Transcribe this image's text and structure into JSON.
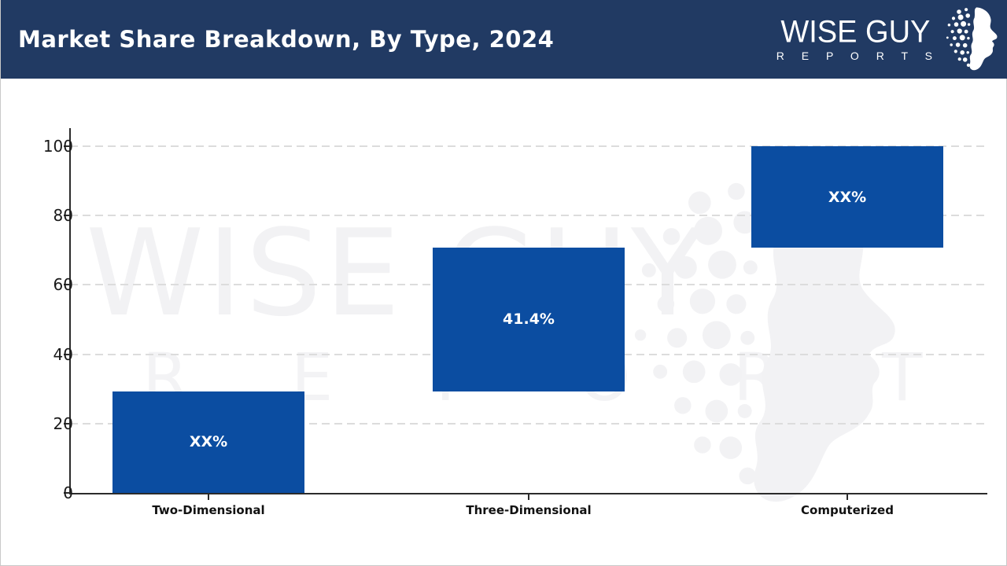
{
  "header": {
    "title": "Market Share Breakdown, By Type, 2024",
    "bg_color": "#213a63",
    "logo": {
      "line1": "WISE GUY",
      "line2": "R E P O R T S"
    }
  },
  "watermark": {
    "line1": "WISE GUY",
    "line2": "R E P O R T S"
  },
  "chart_data": {
    "type": "bar",
    "subtype": "waterfall-floating-bars",
    "title": "Market Share Breakdown, By Type, 2024",
    "categories": [
      "Two-Dimensional",
      "Three-Dimensional",
      "Computerized"
    ],
    "series": [
      {
        "name": "Market Share",
        "segments": [
          {
            "category": "Two-Dimensional",
            "start": 0,
            "end": 29.3,
            "label": "XX%"
          },
          {
            "category": "Three-Dimensional",
            "start": 29.3,
            "end": 70.7,
            "label": "41.4%"
          },
          {
            "category": "Computerized",
            "start": 70.7,
            "end": 100,
            "label": "XX%"
          }
        ]
      }
    ],
    "yticks": [
      0,
      20,
      40,
      60,
      80,
      100
    ],
    "ylim": [
      0,
      100
    ],
    "xlabel": "",
    "ylabel": "",
    "grid": "horizontal dashed",
    "legend_position": "none",
    "bar_color": "#0b4da1",
    "bar_label_color": "#ffffff",
    "axis_color": "#2b2b2b",
    "grid_color": "#dcdcdc"
  }
}
